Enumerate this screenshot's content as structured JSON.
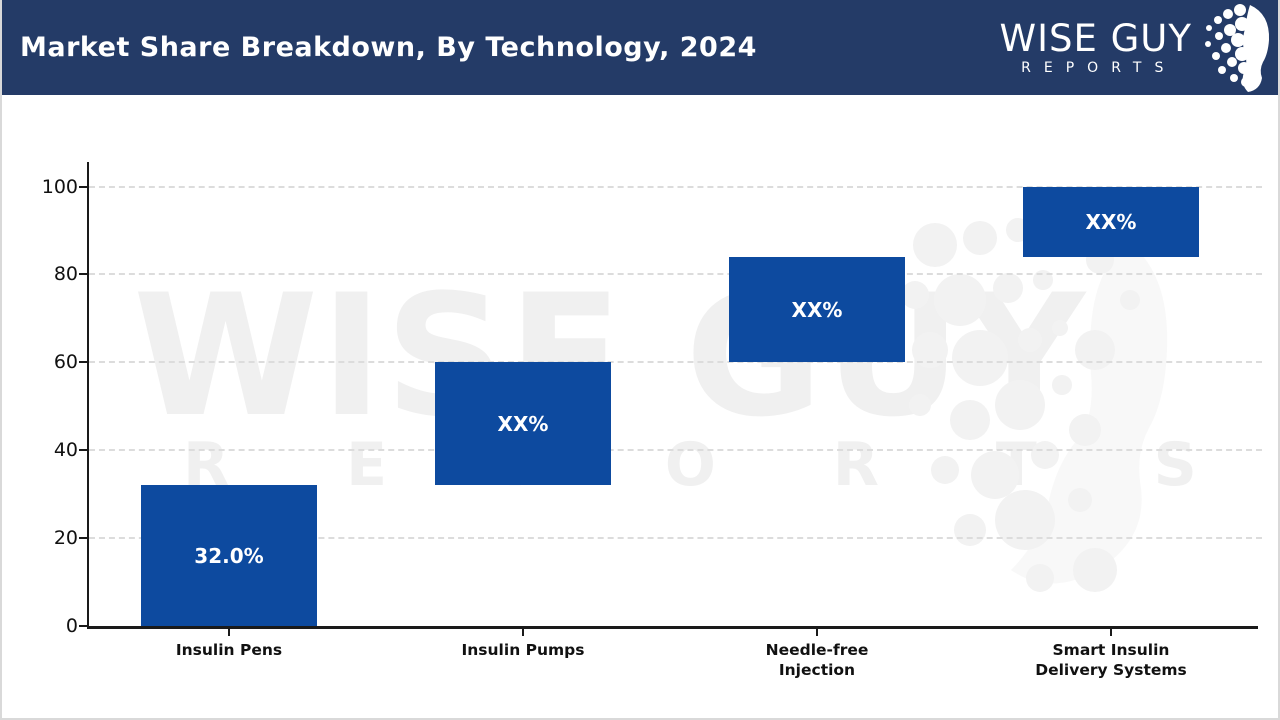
{
  "header": {
    "title": "Market Share Breakdown, By Technology, 2024",
    "logo": {
      "line1": "WISE GUY",
      "line2": "REPORTS"
    }
  },
  "watermark": {
    "line1": "WISE GUY",
    "line2": "R E P O R T S"
  },
  "colors": {
    "header_bg": "#243b67",
    "bar": "#0d4a9f",
    "bar_label": "#ffffff",
    "gridline": "#dcdcdc",
    "axis": "#1a1a1a",
    "watermark": "#f0f0f0",
    "frame_border": "#d9d9d9"
  },
  "chart_data": {
    "type": "bar",
    "subtype": "waterfall-stacked",
    "title": "Market Share Breakdown, By Technology, 2024",
    "categories": [
      "Insulin Pens",
      "Insulin Pumps",
      "Needle-free Injection",
      "Smart Insulin Delivery Systems"
    ],
    "category_lines": [
      [
        "Insulin Pens"
      ],
      [
        "Insulin Pumps"
      ],
      [
        "Needle-free",
        "Injection"
      ],
      [
        "Smart Insulin",
        "Delivery Systems"
      ]
    ],
    "segments": [
      {
        "category": "Insulin Pens",
        "start": 0,
        "end": 32,
        "value": 32.0,
        "label": "32.0%"
      },
      {
        "category": "Insulin Pumps",
        "start": 32,
        "end": 60,
        "value": 28,
        "label": "XX%"
      },
      {
        "category": "Needle-free Injection",
        "start": 60,
        "end": 84,
        "value": 24,
        "label": "XX%"
      },
      {
        "category": "Smart Insulin Delivery Systems",
        "start": 84,
        "end": 100,
        "value": 16,
        "label": "XX%"
      }
    ],
    "xlabel": "",
    "ylabel": "",
    "ylim": [
      0,
      100
    ],
    "yticks": [
      0,
      20,
      40,
      60,
      80,
      100
    ],
    "grid": "horizontal-dashed",
    "legend": "none"
  }
}
